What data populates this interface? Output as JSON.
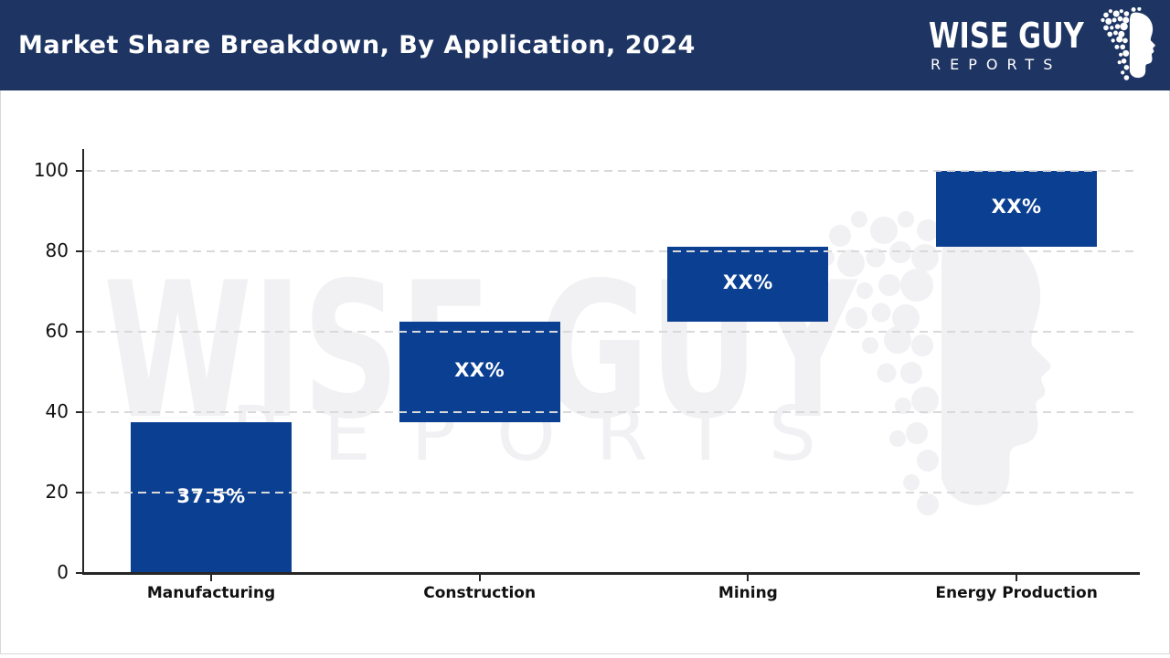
{
  "header": {
    "title": "Market Share Breakdown, By Application, 2024",
    "logo": {
      "line1": "WISE GUY",
      "line2": "REPORTS"
    }
  },
  "watermark": {
    "line1": "WISE GUY",
    "line2": "REPORTS"
  },
  "colors": {
    "header_bg": "#1e3563",
    "bar": "#0b3f92",
    "axis": "#262626",
    "grid": "#d9d9d9",
    "label_on_bar": "#ffffff",
    "watermark": "#f1f1f4",
    "card_border": "#d8d8d8"
  },
  "chart_data": {
    "type": "bar",
    "subtype": "waterfall",
    "title": "Market Share Breakdown, By Application, 2024",
    "categories": [
      "Manufacturing",
      "Construction",
      "Mining",
      "Energy Production"
    ],
    "segments": [
      {
        "category": "Manufacturing",
        "start": 0,
        "end": 37.5,
        "label": "37.5%"
      },
      {
        "category": "Construction",
        "start": 37.5,
        "end": 62.5,
        "label": "XX%"
      },
      {
        "category": "Mining",
        "start": 62.5,
        "end": 81.25,
        "label": "XX%"
      },
      {
        "category": "Energy Production",
        "start": 81.25,
        "end": 100,
        "label": "XX%"
      }
    ],
    "xlabel": "",
    "ylabel": "",
    "ylim": [
      0,
      105
    ],
    "yticks": [
      0,
      20,
      40,
      60,
      80,
      100
    ],
    "grid": "horizontal-dashed",
    "legend": "none",
    "bar_label_note": "values shown inside bars; non-first bars masked as XX%"
  }
}
